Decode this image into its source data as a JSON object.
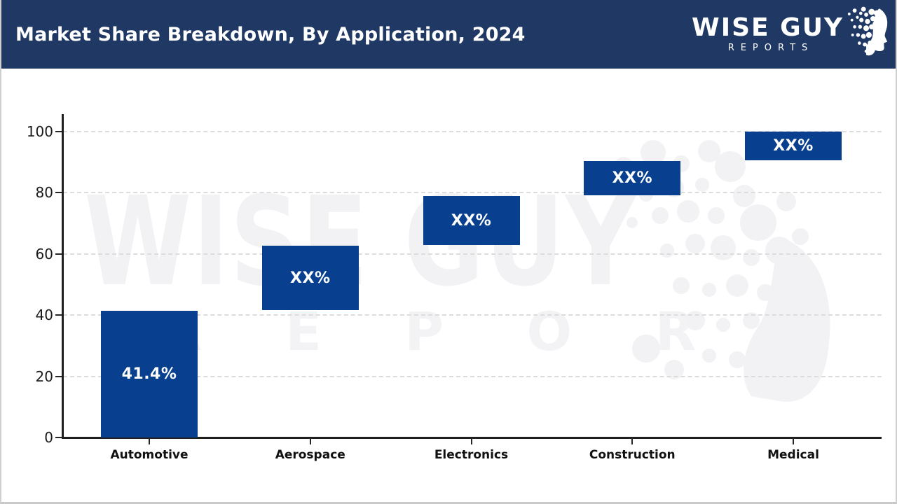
{
  "header": {
    "title": "Market Share Breakdown, By Application, 2024",
    "logo": {
      "line1": "WISE GUY",
      "line2": "REPORTS"
    },
    "bg_color": "#1f3864"
  },
  "watermark": {
    "line1": "WISE GUY",
    "line2": "R E P O R T S"
  },
  "chart_data": {
    "type": "bar",
    "subtype": "waterfall",
    "title": "Market Share Breakdown, By Application, 2024",
    "xlabel": "",
    "ylabel": "",
    "categories": [
      "Automotive",
      "Aerospace",
      "Electronics",
      "Construction",
      "Medical"
    ],
    "segments": [
      {
        "category": "Automotive",
        "start": 0,
        "end": 41.4,
        "label": "41.4%"
      },
      {
        "category": "Aerospace",
        "start": 41.5,
        "end": 62.6,
        "label": "XX%"
      },
      {
        "category": "Electronics",
        "start": 62.8,
        "end": 78.9,
        "label": "XX%"
      },
      {
        "category": "Construction",
        "start": 79.2,
        "end": 90.4,
        "label": "XX%"
      },
      {
        "category": "Medical",
        "start": 90.5,
        "end": 100,
        "label": "XX%"
      }
    ],
    "yticks": [
      0,
      20,
      40,
      60,
      80,
      100
    ],
    "ylim": [
      0,
      105.7
    ],
    "grid": "horizontal-dashed",
    "legend": "none",
    "bar_color": "#08408f",
    "bar_label_color": "#ffffff",
    "grid_color": "#dcdcdc",
    "axis_color": "#1f1f1f"
  }
}
